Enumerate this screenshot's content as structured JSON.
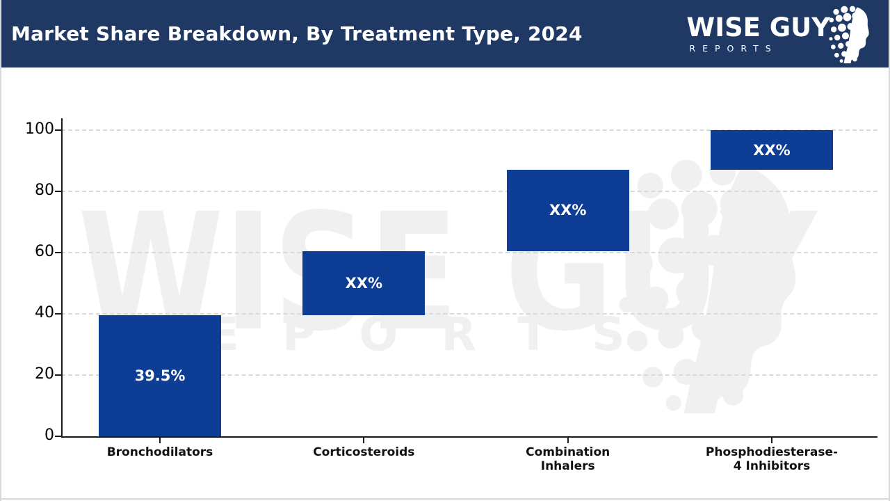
{
  "header": {
    "title": "Market Share Breakdown, By Treatment Type, 2024",
    "logo": {
      "main": "WISE GUY",
      "sub": "REPORTS"
    }
  },
  "watermark": {
    "line1": "WISE GUY",
    "line2": "REPORTS"
  },
  "colors": {
    "header_bg": "#1f3864",
    "bar_blue": "#0d3d94",
    "gridline": "#d9d9d9",
    "watermark": "#f0f0f0",
    "label_white": "#ffffff",
    "text_black": "#111111"
  },
  "chart_data": {
    "type": "bar",
    "subtype": "floating-waterfall",
    "title": "Market Share Breakdown, By Treatment Type, 2024",
    "xlabel": "",
    "ylabel": "",
    "ylim": [
      0,
      100
    ],
    "yticks": [
      0,
      20,
      40,
      60,
      80,
      100
    ],
    "grid": "horizontal-dashed",
    "legend": "none",
    "categories": [
      "Bronchodilators",
      "Corticosteroids",
      "Combination\nInhalers",
      "Phosphodiesterase-\n4 Inhibitors"
    ],
    "segments": [
      {
        "category": "Bronchodilators",
        "start": 0,
        "end": 39.5,
        "label": "39.5%"
      },
      {
        "category": "Corticosteroids",
        "start": 39.5,
        "end": 60.5,
        "label": "XX%"
      },
      {
        "category": "Combination\nInhalers",
        "start": 60.5,
        "end": 87,
        "label": "XX%"
      },
      {
        "category": "Phosphodiesterase-\n4 Inhibitors",
        "start": 87,
        "end": 100,
        "label": "XX%"
      }
    ]
  }
}
